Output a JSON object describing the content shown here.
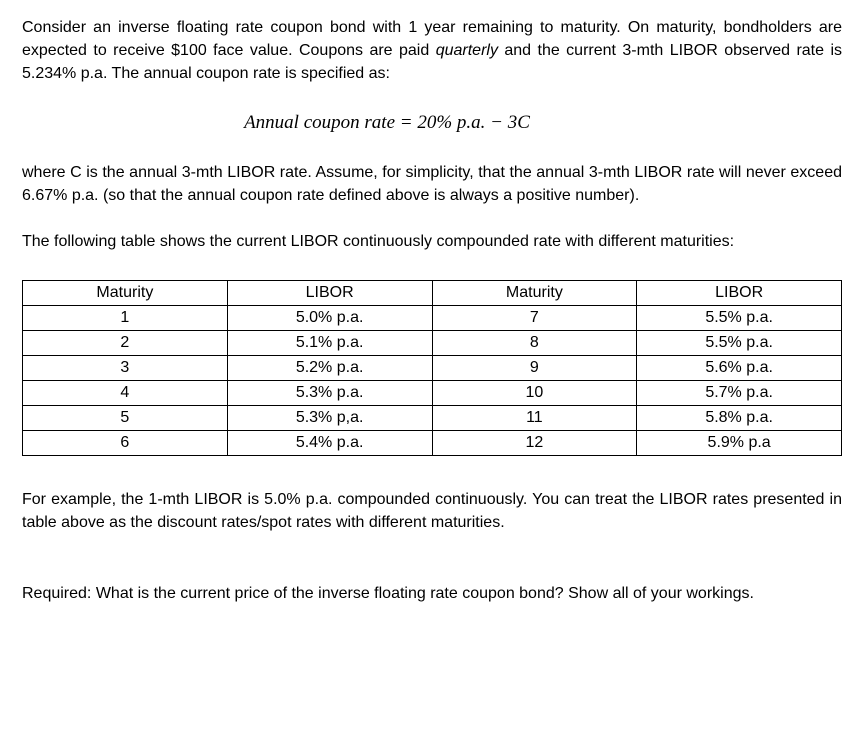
{
  "doc": {
    "p1_before_italic": "Consider an inverse floating rate coupon bond with 1 year remaining to maturity. On maturity, bondholders are expected to receive $100 face value. Coupons are paid ",
    "p1_italic": "quarterly",
    "p1_after_italic": " and the current 3-mth LIBOR observed rate is 5.234% p.a. The annual coupon rate is specified as:",
    "formula": "Annual coupon rate = 20% p.a. − 3C",
    "p2": "where C is the annual 3-mth LIBOR rate. Assume, for simplicity, that the annual 3-mth LIBOR rate will never exceed 6.67% p.a. (so that the annual coupon rate defined above is always a positive number).",
    "p3": "The following table shows the current LIBOR continuously compounded rate with different maturities:",
    "p4": "For example, the 1-mth LIBOR is 5.0% p.a. compounded continuously. You can treat the LIBOR rates presented in table above as the discount rates/spot rates with different maturities.",
    "p5": "Required: What is the current price of the inverse floating rate coupon bond? Show all of your workings."
  },
  "table": {
    "headers": [
      "Maturity",
      "LIBOR",
      "Maturity",
      "LIBOR"
    ],
    "rows": [
      [
        "1",
        "5.0% p.a.",
        "7",
        "5.5% p.a."
      ],
      [
        "2",
        "5.1% p.a.",
        "8",
        "5.5% p.a."
      ],
      [
        "3",
        "5.2% p.a.",
        "9",
        "5.6% p.a."
      ],
      [
        "4",
        "5.3% p.a.",
        "10",
        "5.7% p.a."
      ],
      [
        "5",
        "5.3% p,a.",
        "11",
        "5.8% p.a."
      ],
      [
        "6",
        "5.4% p.a.",
        "12",
        "5.9% p.a"
      ]
    ]
  }
}
